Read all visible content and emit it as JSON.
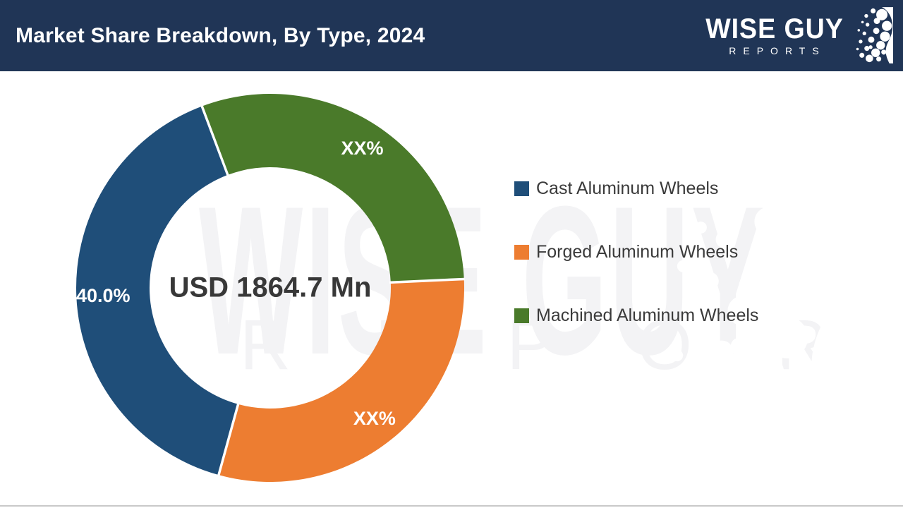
{
  "header": {
    "title": "Market Share Breakdown, By Type, 2024",
    "bg_color": "#203556",
    "logo": {
      "line1": "WISE GUY",
      "line2": "REPORTS"
    }
  },
  "watermark": {
    "line1": "WISE GUY",
    "line2": "R E P O R T S"
  },
  "chart_data": {
    "type": "pie",
    "subtype": "donut",
    "title": "Market Share Breakdown, By Type, 2024",
    "center_label": "USD 1864.7 Mn",
    "units": "percent of market share",
    "legend_position": "right",
    "direction": "counterclockwise",
    "start_screen_angle_deg": 339.4,
    "inner_radius_ratio": 0.62,
    "series": [
      {
        "name": "Cast Aluminum Wheels",
        "value": 40.0,
        "display_label": "40.0%",
        "color": "#1F4E79"
      },
      {
        "name": "Forged Aluminum Wheels",
        "value": 30.0,
        "display_label": "XX%",
        "color": "#ED7D31"
      },
      {
        "name": "Machined Aluminum Wheels",
        "value": 30.0,
        "display_label": "XX%",
        "color": "#4A7A2A"
      }
    ]
  }
}
